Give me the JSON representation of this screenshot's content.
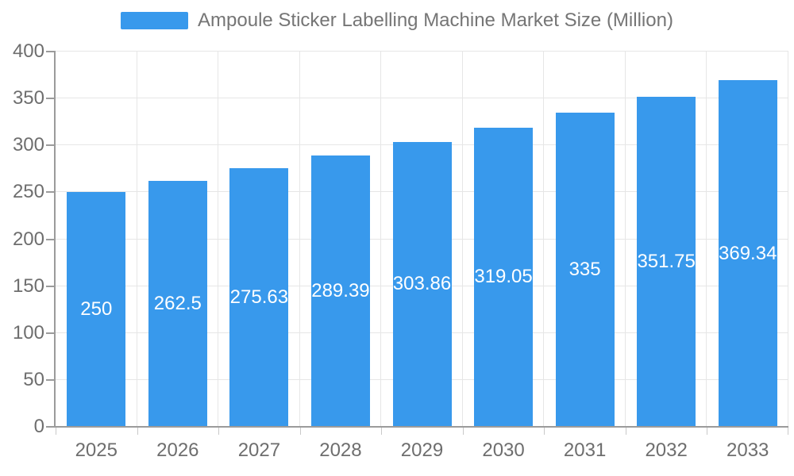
{
  "chart_data": {
    "type": "bar",
    "title": "Ampoule Sticker Labelling Machine Market Size (Million)",
    "series_name": "Ampoule Sticker Labelling Machine Market Size (Million)",
    "categories": [
      "2025",
      "2026",
      "2027",
      "2028",
      "2029",
      "2030",
      "2031",
      "2032",
      "2033"
    ],
    "values": [
      250,
      262.5,
      275.63,
      289.39,
      303.86,
      319.05,
      335,
      351.75,
      369.34
    ],
    "xlabel": "",
    "ylabel": "",
    "ylim": [
      0,
      400
    ],
    "yticks": [
      0,
      50,
      100,
      150,
      200,
      250,
      300,
      350,
      400
    ],
    "grid": true,
    "legend_position": "top",
    "bar_labels_position": "center-inside",
    "colors": {
      "bar": "#3899ec",
      "bar_label": "#ffffff",
      "axis_text": "#6e6e6e",
      "legend_text": "#757575",
      "grid": "#e6e6e6",
      "axis_line": "#9b9b9b",
      "tick": "#c9c9c9",
      "background": "#ffffff"
    }
  }
}
